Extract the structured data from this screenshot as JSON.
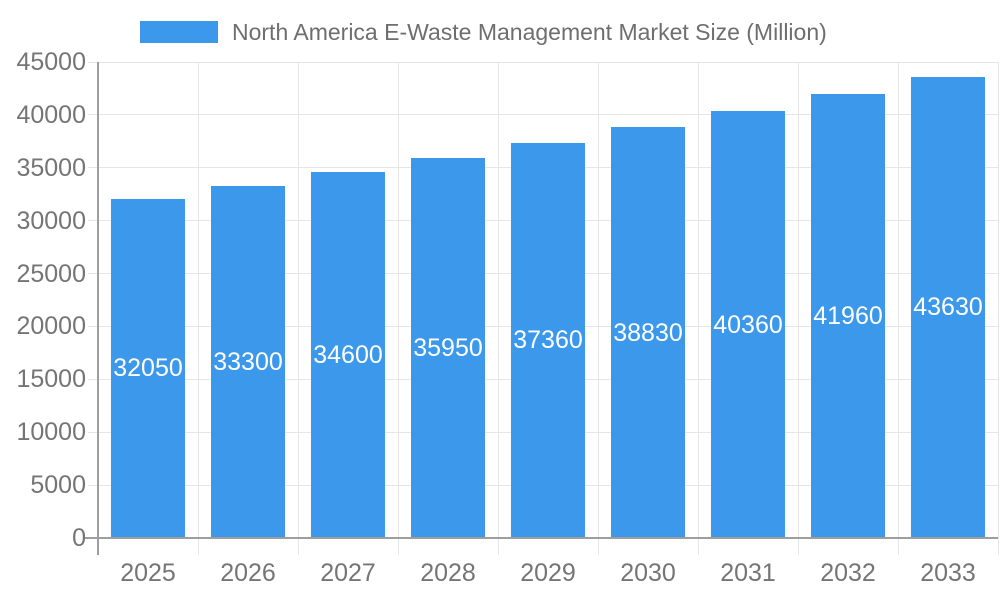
{
  "legend": {
    "label": "North America E-Waste Management Market Size (Million)"
  },
  "chart_data": {
    "type": "bar",
    "title": "North America E-Waste Management Market Size (Million)",
    "categories": [
      "2025",
      "2026",
      "2027",
      "2028",
      "2029",
      "2030",
      "2031",
      "2032",
      "2033"
    ],
    "series": [
      {
        "name": "North America E-Waste Management Market Size (Million)",
        "values": [
          32050,
          33300,
          34600,
          35950,
          37360,
          38830,
          40360,
          41960,
          43630
        ]
      }
    ],
    "bar_value_labels": [
      "32050",
      "33300",
      "34600",
      "35950",
      "37360",
      "38830",
      "40360",
      "41960",
      "43630"
    ],
    "xlabel": "",
    "ylabel": "",
    "ylim": [
      0,
      45000
    ],
    "ytick_interval": 5000,
    "yticks": [
      0,
      5000,
      10000,
      15000,
      20000,
      25000,
      30000,
      35000,
      40000,
      45000
    ],
    "grid": true,
    "legend_position": "top",
    "colors": {
      "bar": "#3B98EB",
      "bar_label_text": "#FFFFFF",
      "axis_text": "#757575",
      "legend_text": "#6E6E6E",
      "gridline": "#E6E6E6",
      "axis_line": "#9E9E9E",
      "background": "#FFFFFF"
    }
  }
}
